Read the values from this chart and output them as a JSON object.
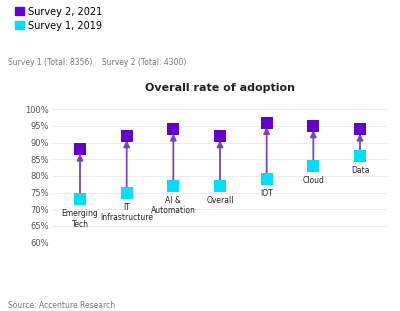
{
  "categories": [
    "Emerging\nTech",
    "IT\nInfrastructure",
    "AI &\nAutomation",
    "Overall",
    "IOT",
    "Cloud",
    "Data"
  ],
  "survey1_2019": [
    73,
    75,
    77,
    77,
    79,
    83,
    86
  ],
  "survey2_2021": [
    88,
    92,
    94,
    92,
    96,
    95,
    94
  ],
  "color_2021": "#6600cc",
  "color_2019": "#00ddff",
  "arrow_color_top": "#5500bb",
  "arrow_color_bottom": "#00ccee",
  "title": "Overall rate of adoption",
  "legend_label_2021": "Survey 2, 2021",
  "legend_label_2019": "Survey 1, 2019",
  "subtitle": "Survey 1 (Total: 8356)    Survey 2 (Total: 4300)",
  "source": "Source: Accenture Research",
  "ylim_min": 60,
  "ylim_max": 102,
  "yticks": [
    60,
    65,
    70,
    75,
    80,
    85,
    90,
    95,
    100
  ],
  "marker_size": 8,
  "bg_color": "#ffffff"
}
